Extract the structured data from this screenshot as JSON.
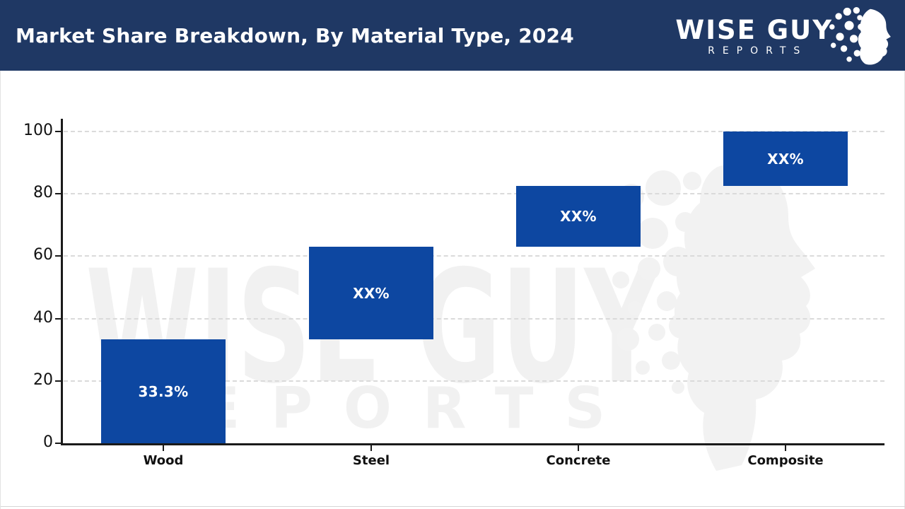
{
  "header": {
    "title": "Market Share Breakdown, By Material Type, 2024",
    "background_color": "#1F3864",
    "logo": {
      "line1": "WISE GUY",
      "line2": "REPORTS"
    }
  },
  "watermark": {
    "line1": "WISE GUY",
    "line2": "REPORTS"
  },
  "chart_data": {
    "type": "bar",
    "subtype": "waterfall-floating-bars",
    "title": "Market Share Breakdown, By Material Type, 2024",
    "categories": [
      "Wood",
      "Steel",
      "Concrete",
      "Composite"
    ],
    "segments": [
      {
        "category": "Wood",
        "start": 0,
        "end": 33.3,
        "label": "33.3%"
      },
      {
        "category": "Steel",
        "start": 33.3,
        "end": 63.0,
        "label": "XX%"
      },
      {
        "category": "Concrete",
        "start": 63.0,
        "end": 82.5,
        "label": "XX%"
      },
      {
        "category": "Composite",
        "start": 82.5,
        "end": 100,
        "label": "XX%"
      }
    ],
    "xlabel": "",
    "ylabel": "",
    "ylim": [
      0,
      103.6
    ],
    "yticks": [
      0,
      20,
      40,
      60,
      80,
      100
    ],
    "grid": "horizontal-dashed",
    "legend": "none",
    "bar_color": "#0D47A1",
    "bar_label_color": "#FFFFFF",
    "axis_color": "#1a1a1a",
    "gridline_color": "#DADADA"
  }
}
